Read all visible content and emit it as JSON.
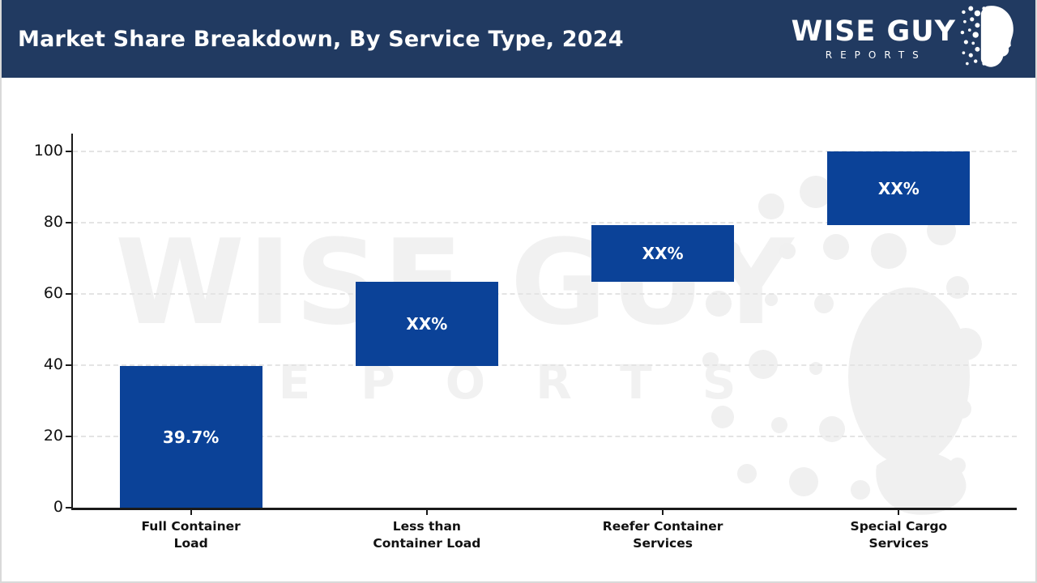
{
  "header": {
    "logo": {
      "line1": "WISE GUY",
      "line2": "REPORTS"
    }
  },
  "watermark": {
    "line1": "WISE GUY",
    "line2": "REPORTS"
  },
  "colors": {
    "header_bg": "#213a61",
    "bar": "#0b4298",
    "grid": "#e4e4e4",
    "axis": "#1a1a1a",
    "watermark": "#f1f1f1"
  },
  "chart_data": {
    "type": "bar",
    "variant": "waterfall",
    "title": "Market Share Breakdown, By Service Type, 2024",
    "xlabel": "",
    "ylabel": "",
    "ylim": [
      0,
      105
    ],
    "yticks": [
      0,
      20,
      40,
      60,
      80,
      100
    ],
    "grid": "horizontal-dashed",
    "legend": "none",
    "bar_color": "#0b4298",
    "bars": [
      {
        "category": "Full Container Load",
        "category_lines": [
          "Full Container",
          "Load"
        ],
        "start": 0,
        "end": 39.7,
        "value_label": "39.7%"
      },
      {
        "category": "Less than Container Load",
        "category_lines": [
          "Less than",
          "Container Load"
        ],
        "start": 39.7,
        "end": 63.5,
        "value_label": "XX%"
      },
      {
        "category": "Reefer Container Services",
        "category_lines": [
          "Reefer Container",
          "Services"
        ],
        "start": 63.5,
        "end": 79.3,
        "value_label": "XX%"
      },
      {
        "category": "Special Cargo Services",
        "category_lines": [
          "Special Cargo",
          "Services"
        ],
        "start": 79.3,
        "end": 100,
        "value_label": "XX%"
      }
    ]
  }
}
